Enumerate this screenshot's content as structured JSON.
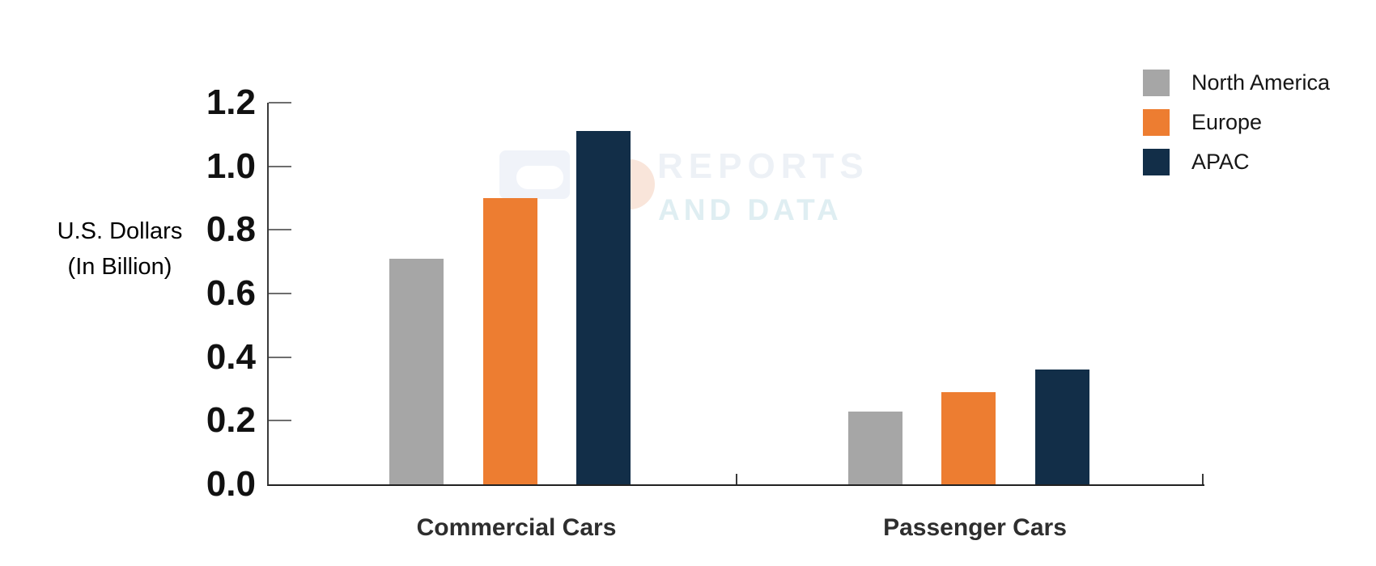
{
  "chart_data": {
    "type": "bar",
    "categories": [
      "Commercial Cars",
      "Passenger Cars"
    ],
    "series": [
      {
        "name": "North America",
        "color": "#a6a6a6",
        "values": [
          0.71,
          0.23
        ]
      },
      {
        "name": "Europe",
        "color": "#ed7d31",
        "values": [
          0.9,
          0.29
        ]
      },
      {
        "name": "APAC",
        "color": "#122e48",
        "values": [
          1.11,
          0.36
        ]
      }
    ],
    "ylabel_line1": "U.S. Dollars",
    "ylabel_line2": "(In Billion)",
    "ylim": [
      0,
      1.2
    ],
    "yticks": [
      "0.0",
      "0.2",
      "0.4",
      "0.6",
      "0.8",
      "1.0",
      "1.2"
    ],
    "grid": false,
    "legend_position": "top-right"
  },
  "watermark": {
    "line1": "REPORTS",
    "line2": "AND DATA"
  }
}
